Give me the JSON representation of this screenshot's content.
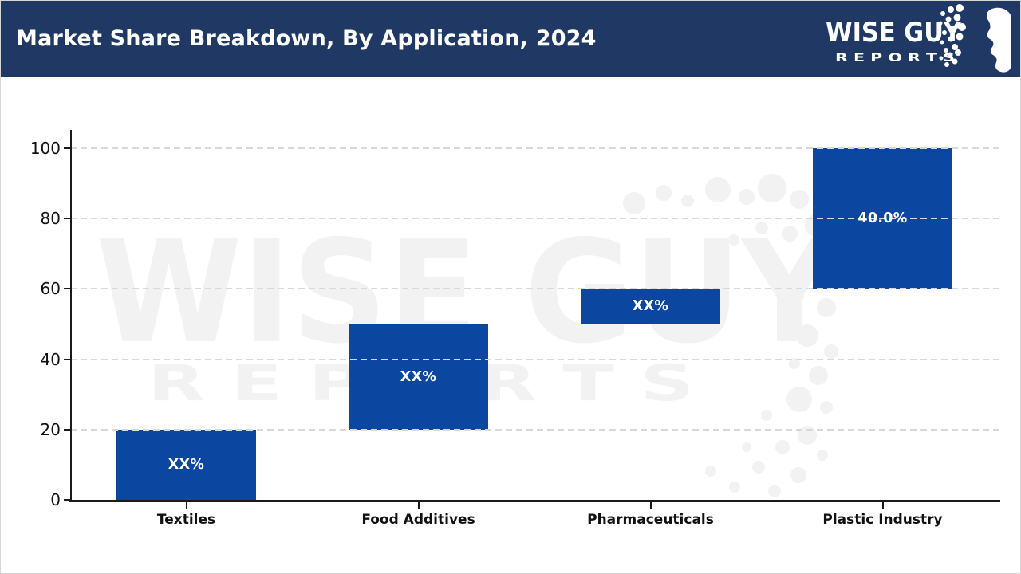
{
  "header": {
    "title": "Market Share Breakdown, By Application, 2024",
    "logo": {
      "line1": "WISE GUY",
      "line2": "R E P O R T S"
    }
  },
  "watermark": {
    "line1": "WISE GUY",
    "line2": "R E P O R T S"
  },
  "chart_data": {
    "type": "bar",
    "subtype": "waterfall",
    "title": "Market Share Breakdown, By Application, 2024",
    "categories": [
      "Textiles",
      "Food Additives",
      "Pharmaceuticals",
      "Plastic Industry"
    ],
    "series": [
      {
        "category": "Textiles",
        "start": 0,
        "end": 20,
        "value_label": "XX%"
      },
      {
        "category": "Food Additives",
        "start": 20,
        "end": 50,
        "value_label": "XX%"
      },
      {
        "category": "Pharmaceuticals",
        "start": 50,
        "end": 60,
        "value_label": "XX%"
      },
      {
        "category": "Plastic Industry",
        "start": 60,
        "end": 100,
        "value_label": "40.0%"
      }
    ],
    "xlabel": "",
    "ylabel": "",
    "ylim": [
      0,
      100
    ],
    "yticks": [
      0,
      20,
      40,
      60,
      80,
      100
    ],
    "grid": "horizontal dashed, drawn over bars",
    "legend": "none",
    "bar_color": "#0b46a1",
    "value_label_color": "#ffffff"
  },
  "colors": {
    "header_bg": "#1f3864",
    "bar": "#0b46a1",
    "grid": "#d9d9d9",
    "axis": "#1a1a1a",
    "watermark": "#f2f2f2",
    "tick_text": "#111111"
  }
}
